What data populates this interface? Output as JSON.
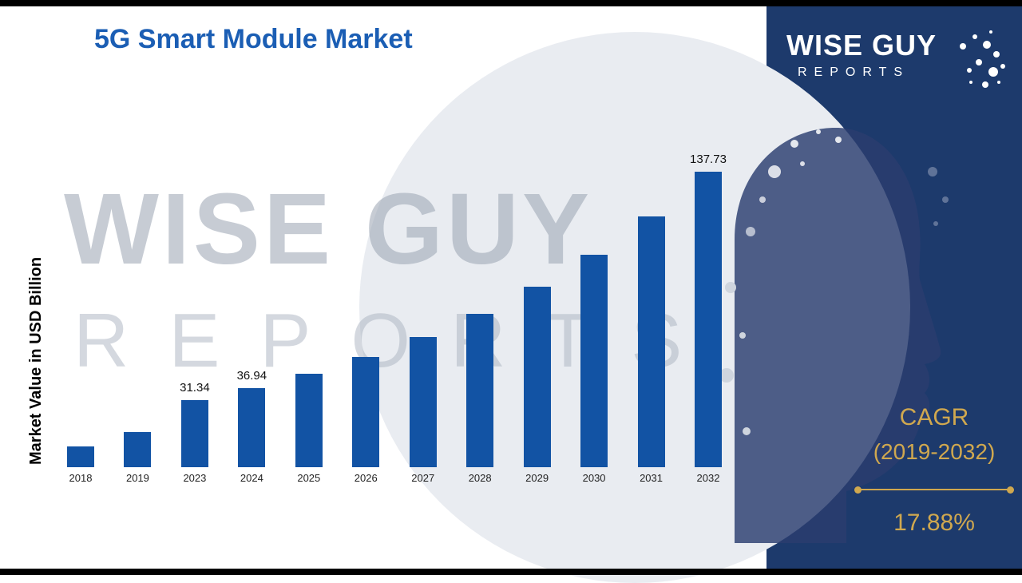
{
  "chart_data": {
    "type": "bar",
    "title": "5G Smart Module Market",
    "ylabel": "Market Value in USD Billion",
    "unit": "USD Billion",
    "categories": [
      "2018",
      "2019",
      "2023",
      "2024",
      "2025",
      "2026",
      "2027",
      "2028",
      "2029",
      "2030",
      "2031",
      "2032"
    ],
    "values": [
      9.5,
      16.2,
      31.34,
      36.94,
      43.55,
      51.33,
      60.51,
      71.33,
      84.08,
      99.12,
      116.84,
      137.73
    ],
    "value_labels": {
      "2023": "31.34",
      "2024": "36.94",
      "2032": "137.73"
    },
    "ylim": [
      0,
      150
    ],
    "bar_color": "#1253a4",
    "gridlines": false,
    "legend": false
  },
  "watermark": {
    "line1": "WISE GUY",
    "line2": "REPORTS"
  },
  "sidebar": {
    "logo_line1": "WISE GUY",
    "logo_line2": "REPORTS",
    "cagr_label": "CAGR",
    "cagr_range": "(2019-2032)",
    "cagr_value": "17.88%",
    "accent_color": "#d0a84f",
    "panel_color": "#1d3a6c"
  }
}
